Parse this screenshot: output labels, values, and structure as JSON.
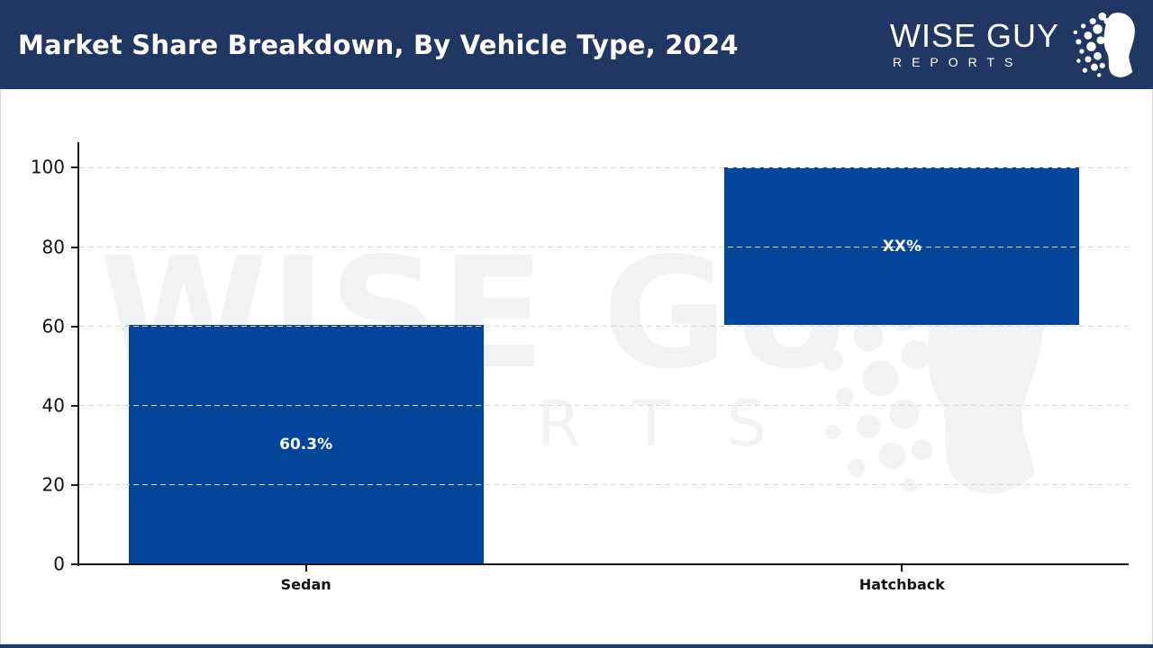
{
  "header": {
    "title": "Market Share Breakdown, By Vehicle Type, 2024",
    "logo": {
      "line1": "WISE GUY",
      "line2": "REPORTS"
    }
  },
  "watermark": {
    "text1": "WISE GU",
    "text2": "REPORTS"
  },
  "colors": {
    "header_bg": "#213763",
    "bar": "#04459C",
    "grid": "#d9d9d9",
    "watermark": "#f2f3f5",
    "axis": "#161616",
    "label_on_bar": "#ffffff"
  },
  "chart_data": {
    "type": "bar",
    "title": "Market Share Breakdown, By Vehicle Type, 2024",
    "categories": [
      "Sedan",
      "Hatchback"
    ],
    "bars": [
      {
        "category": "Sedan",
        "start": 0,
        "end": 60.3,
        "label": "60.3%"
      },
      {
        "category": "Hatchback",
        "start": 60.3,
        "end": 100,
        "label": "XX%"
      }
    ],
    "xlabel": "",
    "ylabel": "",
    "ylim": [
      0,
      106
    ],
    "yticks": [
      0,
      20,
      40,
      60,
      80,
      100
    ],
    "grid": "horizontal-dashed",
    "legend": false,
    "bar_color": "#04459C"
  }
}
